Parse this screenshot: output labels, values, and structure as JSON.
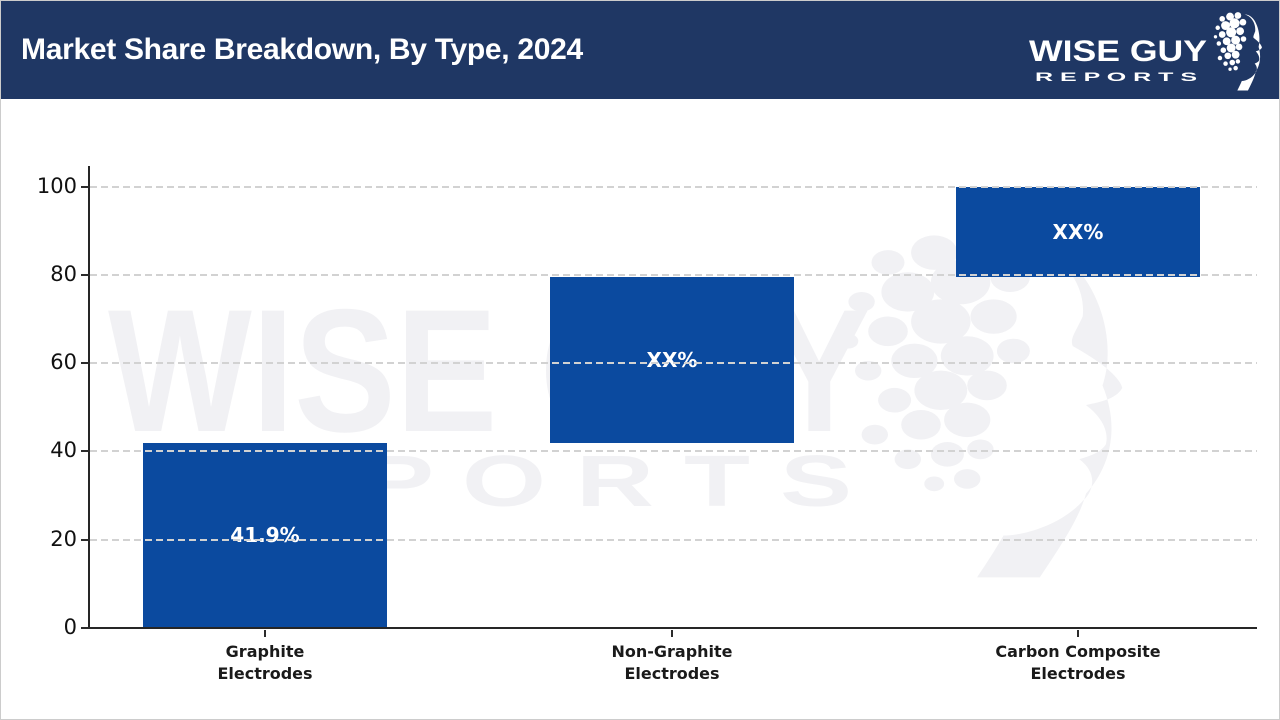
{
  "header": {
    "title": "Market Share Breakdown, By Type, 2024",
    "logo": {
      "brand_line1": "WISE GUY",
      "brand_line2": "R E P O R T S",
      "icon": "wiseguy-face-dots-icon"
    }
  },
  "watermark": {
    "line1": "WISE GUY",
    "line2": "R E P O R T S"
  },
  "chart_data": {
    "type": "bar",
    "subtype": "waterfall",
    "title": "Market Share Breakdown, By Type, 2024",
    "categories": [
      "Graphite Electrodes",
      "Non-Graphite Electrodes",
      "Carbon Composite Electrodes"
    ],
    "bars": [
      {
        "category_line1": "Graphite",
        "category_line2": "Electrodes",
        "start": 0,
        "end": 41.9,
        "label": "41.9%"
      },
      {
        "category_line1": "Non-Graphite",
        "category_line2": "Electrodes",
        "start": 41.9,
        "end": 79.5,
        "label": "XX%"
      },
      {
        "category_line1": "Carbon Composite",
        "category_line2": "Electrodes",
        "start": 79.5,
        "end": 99.8,
        "label": "XX%"
      }
    ],
    "yticks": [
      0,
      20,
      40,
      60,
      80,
      100
    ],
    "ylim": [
      0,
      104.6
    ],
    "xlabel": "",
    "ylabel": "",
    "legend": "none",
    "grid": "horizontal-dashed",
    "bar_color": "#0b4a9f"
  },
  "colors": {
    "header_bg": "#1f3764",
    "bar": "#0b4a9f",
    "grid": "#d2d2d2",
    "axis": "#262626",
    "tick_label": "#111111",
    "watermark": "#f1f1f4",
    "page_border": "#cccccc",
    "background": "#ffffff"
  }
}
